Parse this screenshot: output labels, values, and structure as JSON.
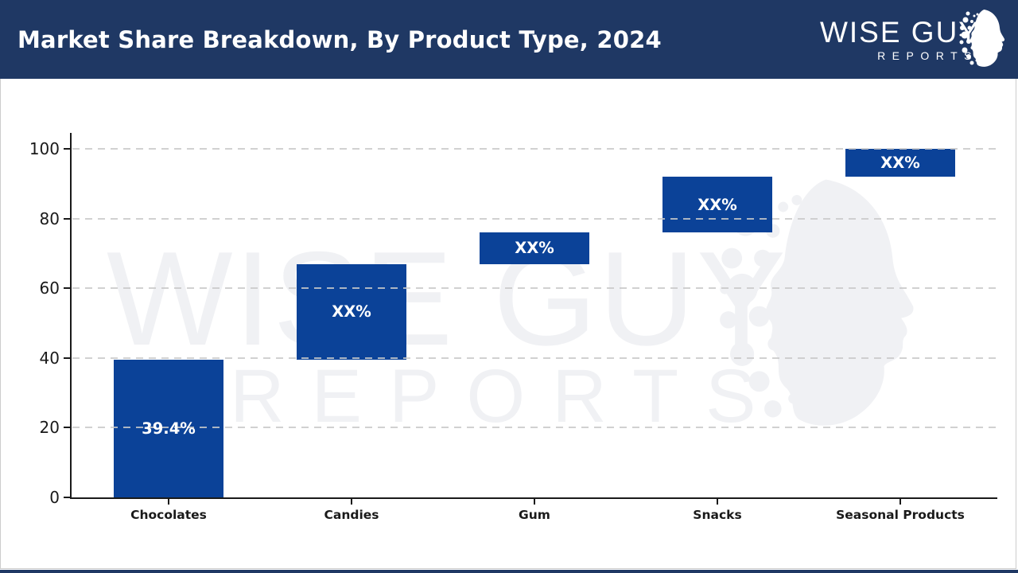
{
  "header": {
    "title": "Market Share Breakdown, By Product Type, 2024",
    "logo": {
      "line1": "WISE GUY",
      "line2": "REPORTS"
    }
  },
  "watermark": {
    "line1": "WISE GUY",
    "line2": "REPORTS"
  },
  "chart_data": {
    "type": "bar",
    "subtype": "waterfall",
    "title": "Market Share Breakdown, By Product Type, 2024",
    "xlabel": "",
    "ylabel": "",
    "categories": [
      "Chocolates",
      "Candies",
      "Gum",
      "Snacks",
      "Seasonal Products"
    ],
    "segments": [
      {
        "category": "Chocolates",
        "start": 0,
        "end": 39.4,
        "label": "39.4%"
      },
      {
        "category": "Candies",
        "start": 39.4,
        "end": 67,
        "label": "XX%"
      },
      {
        "category": "Gum",
        "start": 67,
        "end": 76,
        "label": "XX%"
      },
      {
        "category": "Snacks",
        "start": 76,
        "end": 92,
        "label": "XX%"
      },
      {
        "category": "Seasonal Products",
        "start": 92,
        "end": 100,
        "label": "XX%"
      }
    ],
    "yticks": [
      0,
      20,
      40,
      60,
      80,
      100
    ],
    "ylim": [
      0,
      105
    ],
    "grid": "horizontal dashed, drawn over bars",
    "legend": "none"
  },
  "colors": {
    "header_bg": "#1f3864",
    "bar_fill": "#0b4298",
    "bar_label": "#ffffff",
    "axis": "#1a1a1a",
    "grid": "#c9c9c9",
    "watermark": "#f0f1f4",
    "background": "#ffffff",
    "border": "#cccccc"
  }
}
